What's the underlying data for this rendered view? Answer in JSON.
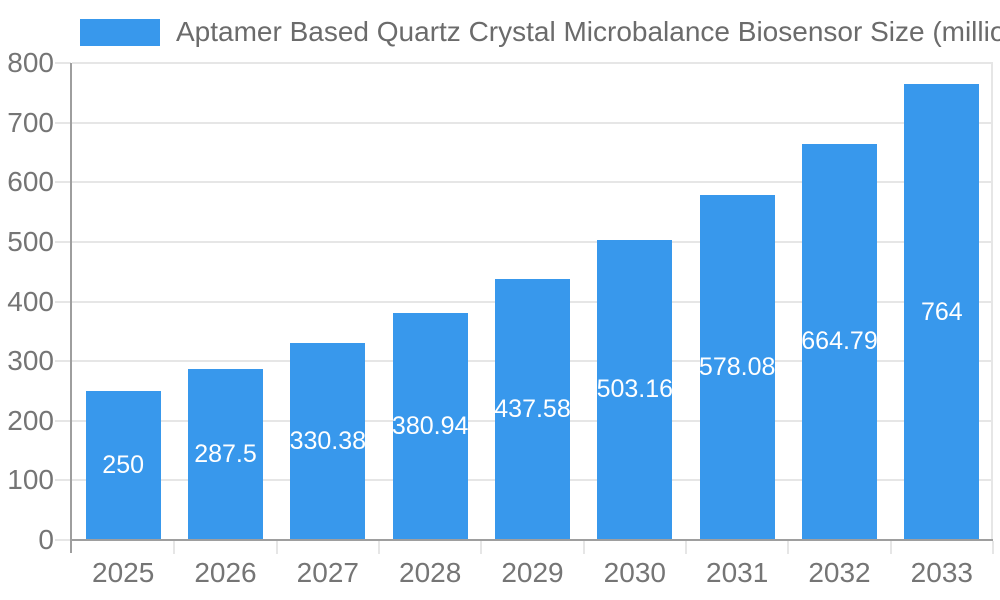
{
  "colors": {
    "bar": "#3898EC",
    "axis_line": "#9e9e9e",
    "gridline": "#e6e6e6",
    "axis_label_text": "#757575",
    "legend_text": "#6b6b6b",
    "bar_label_text": "#ffffff",
    "background": "#ffffff"
  },
  "legend": {
    "label": "Aptamer Based Quartz Crystal Microbalance Biosensor Size (million)"
  },
  "chart_data": {
    "type": "bar",
    "title": "Aptamer Based Quartz Crystal Microbalance Biosensor Size (million)",
    "categories": [
      "2025",
      "2026",
      "2027",
      "2028",
      "2029",
      "2030",
      "2031",
      "2032",
      "2033"
    ],
    "series": [
      {
        "name": "Aptamer Based Quartz Crystal Microbalance Biosensor Size (million)",
        "values": [
          250,
          287.5,
          330.38,
          380.94,
          437.58,
          503.16,
          578.08,
          664.79,
          764
        ]
      }
    ],
    "value_labels": [
      "250",
      "287.5",
      "330.38",
      "380.94",
      "437.58",
      "503.16",
      "578.08",
      "664.79",
      "764"
    ],
    "xlabel": "",
    "ylabel": "",
    "ylim": [
      0,
      800
    ],
    "yticks": [
      0,
      100,
      200,
      300,
      400,
      500,
      600,
      700,
      800
    ],
    "grid": true,
    "legend_position": "top-left",
    "bar_label_position": "center"
  }
}
